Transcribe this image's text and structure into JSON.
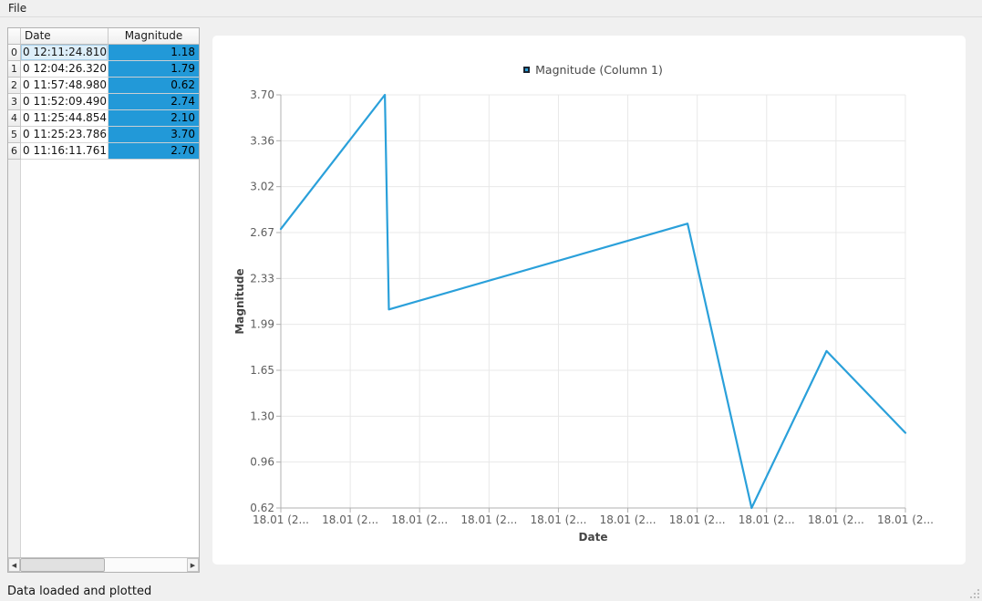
{
  "menu_bar": {
    "items": [
      "File"
    ]
  },
  "icons": {
    "scroll_left": "◀",
    "scroll_right": "▶"
  },
  "table": {
    "columns": [
      "Date",
      "Magnitude"
    ],
    "highlight_color": "#2299d8",
    "rows": [
      {
        "index": "0",
        "date": "0 12:11:24.810",
        "magnitude": "1.18"
      },
      {
        "index": "1",
        "date": "0 12:04:26.320",
        "magnitude": "1.79"
      },
      {
        "index": "2",
        "date": "0 11:57:48.980",
        "magnitude": "0.62"
      },
      {
        "index": "3",
        "date": "0 11:52:09.490",
        "magnitude": "2.74"
      },
      {
        "index": "4",
        "date": "0 11:25:44.854",
        "magnitude": "2.10"
      },
      {
        "index": "5",
        "date": "0 11:25:23.786",
        "magnitude": "3.70"
      },
      {
        "index": "6",
        "date": "0 11:16:11.761",
        "magnitude": "2.70"
      }
    ]
  },
  "chart_data": {
    "type": "line",
    "title": "",
    "xlabel": "Date",
    "ylabel": "Magnitude",
    "legend_position": "top-center",
    "grid": true,
    "ylim": [
      0.62,
      3.7
    ],
    "y_ticks": [
      "3.70",
      "3.36",
      "3.02",
      "2.67",
      "2.33",
      "1.99",
      "1.65",
      "1.30",
      "0.96",
      "0.62"
    ],
    "x_tick_labels": [
      "18.01 (2...",
      "18.01 (2...",
      "18.01 (2...",
      "18.01 (2...",
      "18.01 (2...",
      "18.01 (2...",
      "18.01 (2...",
      "18.01 (2...",
      "18.01 (2...",
      "18.01 (2..."
    ],
    "series": [
      {
        "name": "Magnitude (Column 1)",
        "color": "#2aa0da",
        "points": [
          {
            "t": "0 11:16:11.761",
            "v": 2.7
          },
          {
            "t": "0 11:25:23.786",
            "v": 3.7
          },
          {
            "t": "0 11:25:44.854",
            "v": 2.1
          },
          {
            "t": "0 11:52:09.490",
            "v": 2.74
          },
          {
            "t": "0 11:57:48.980",
            "v": 0.62
          },
          {
            "t": "0 12:04:26.320",
            "v": 1.79
          },
          {
            "t": "0 12:11:24.810",
            "v": 1.18
          }
        ]
      }
    ]
  },
  "status_bar": {
    "text": "Data loaded and plotted"
  }
}
